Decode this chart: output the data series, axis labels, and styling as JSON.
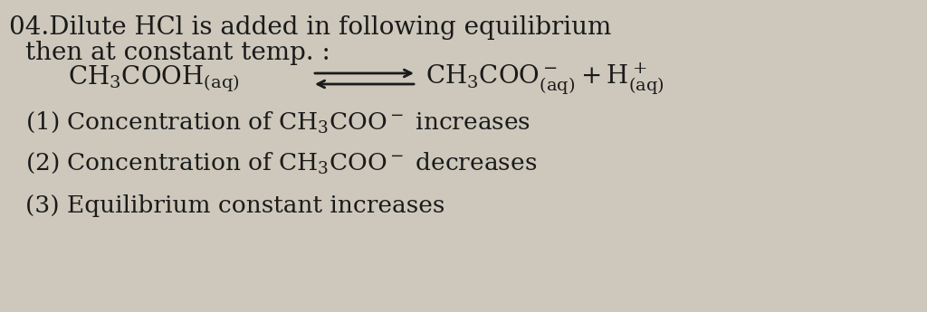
{
  "background_color": "#cdc8bb",
  "text_color": "#1a1a1a",
  "title_line1": "04.Dilute HCl is added in following equilibrium",
  "title_line2": "    then at constant temp. :",
  "fs_title": 20,
  "fs_eq": 20,
  "fs_opt": 19
}
